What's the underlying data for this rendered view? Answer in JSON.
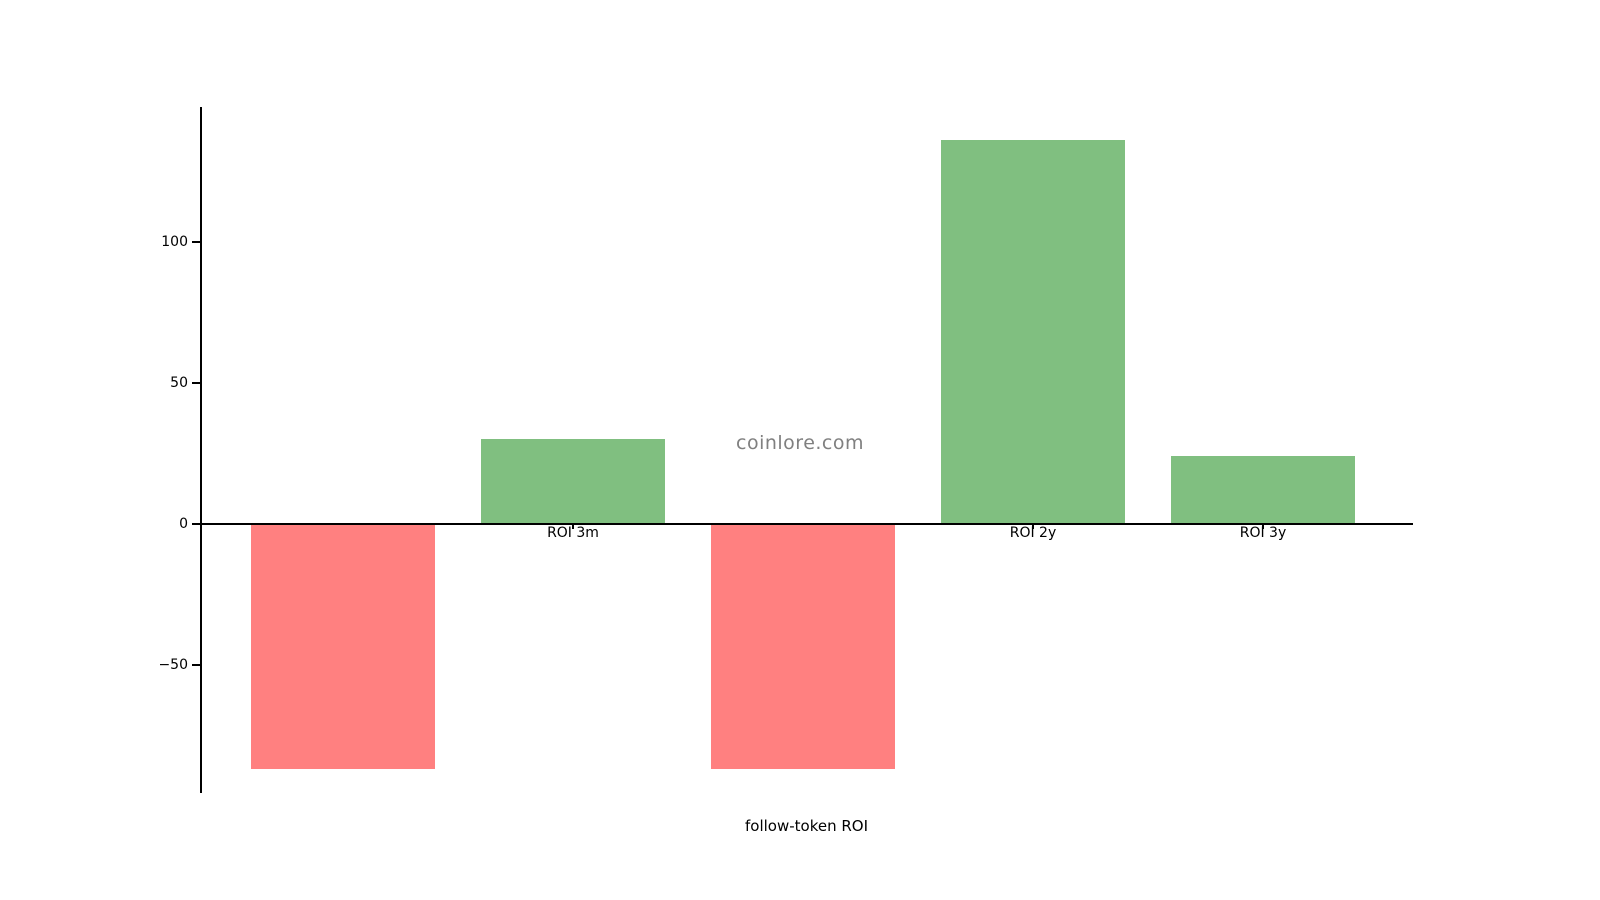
{
  "page": {
    "background": "#ffffff"
  },
  "chart_data": {
    "type": "bar",
    "xlabel": "follow-token ROI",
    "watermark": "coinlore.com",
    "categories": [
      "",
      "ROI 3m",
      "",
      "ROI 2y",
      "ROI 3y"
    ],
    "values": [
      -87,
      30,
      -87,
      136,
      24
    ],
    "bar_colors": [
      "#ff8080",
      "#80bf80",
      "#ff8080",
      "#80bf80",
      "#80bf80"
    ],
    "positive_color": "#80bf80",
    "negative_color": "#ff8080",
    "yticks": [
      -50,
      0,
      50,
      100
    ],
    "ytick_labels": [
      "−50",
      "0",
      "50",
      "100"
    ],
    "ylim": [
      -95,
      148
    ],
    "grid": false,
    "legend_visible": false,
    "axis_color": "#000000",
    "text_color": "#000000",
    "watermark_color": "#808080",
    "note_hidden_labels": "x tick labels of negative (red) bars are covered by the bars and not visible"
  }
}
